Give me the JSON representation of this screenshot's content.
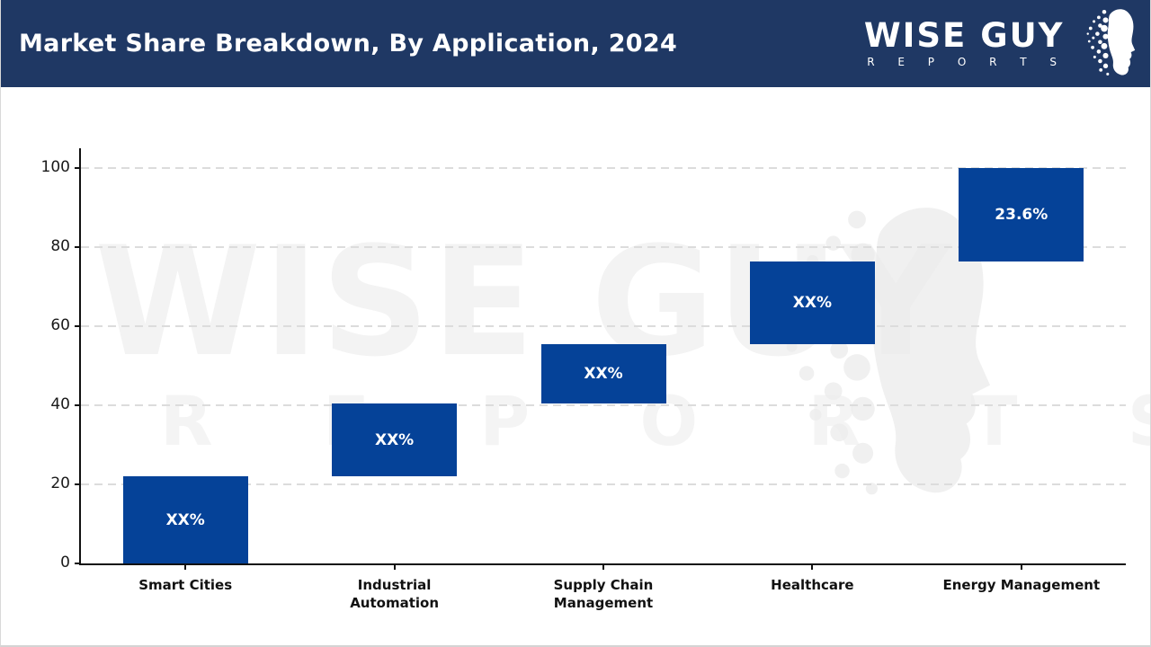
{
  "page": {
    "background": "#ffffff",
    "frame_border_color": "#d9d9d9"
  },
  "header": {
    "background": "#1f3864",
    "title": "Market Share Breakdown, By Application, 2024",
    "logo": {
      "line1": "WISE GUY",
      "line2": "R E P O R T S"
    }
  },
  "watermark": {
    "line1": "WISE GUY",
    "line2": "R E P O R T S"
  },
  "chart_data": {
    "type": "bar",
    "variant": "floating-waterfall",
    "title": "Market Share Breakdown, By Application, 2024",
    "xlabel": "",
    "ylabel": "",
    "ylim": [
      0,
      105
    ],
    "yticks": [
      0,
      20,
      40,
      60,
      80,
      100
    ],
    "grid": "horizontal dashed light-gray, on",
    "legend": "none",
    "bar_color": "#054298",
    "bar_label_color": "#ffffff",
    "categories": [
      "Smart Cities",
      "Industrial Automation",
      "Supply Chain Management",
      "Healthcare",
      "Energy Management"
    ],
    "bars": [
      {
        "category": "Smart Cities",
        "start": 0,
        "end": 22,
        "value_label": "XX%",
        "tick_lines": [
          "Smart Cities"
        ]
      },
      {
        "category": "Industrial Automation",
        "start": 22,
        "end": 40.5,
        "value_label": "XX%",
        "tick_lines": [
          "Industrial",
          "Automation"
        ]
      },
      {
        "category": "Supply Chain Management",
        "start": 40.5,
        "end": 55.5,
        "value_label": "XX%",
        "tick_lines": [
          "Supply Chain",
          "Management"
        ]
      },
      {
        "category": "Healthcare",
        "start": 55.5,
        "end": 76.4,
        "value_label": "XX%",
        "tick_lines": [
          "Healthcare"
        ]
      },
      {
        "category": "Energy Management",
        "start": 76.4,
        "end": 100,
        "value_label": "23.6%",
        "tick_lines": [
          "Energy Management"
        ]
      }
    ]
  }
}
